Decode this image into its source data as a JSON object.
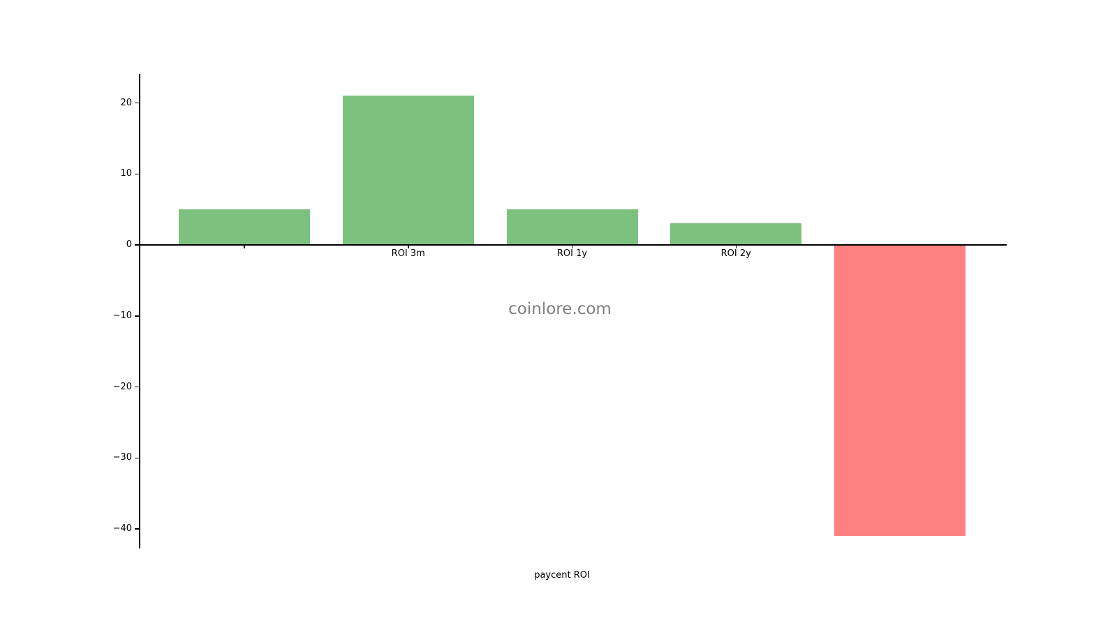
{
  "chart_data": {
    "type": "bar",
    "title": "",
    "xlabel": "paycent ROI",
    "ylabel": "",
    "categories": [
      "",
      "ROI 3m",
      "ROI 1y",
      "ROI 2y",
      ""
    ],
    "values": [
      5,
      21,
      5,
      3,
      -41
    ],
    "yticks": [
      20,
      10,
      0,
      -10,
      -20,
      -30,
      -40
    ],
    "ylim": [
      -43,
      24
    ],
    "grid": false,
    "colors": {
      "positive": "#7cc17e",
      "negative": "#fd8181",
      "axis": "#000000",
      "tick_text": "#000000"
    }
  },
  "watermark": {
    "text": "coinlore.com",
    "color": "#7f7f7f"
  }
}
